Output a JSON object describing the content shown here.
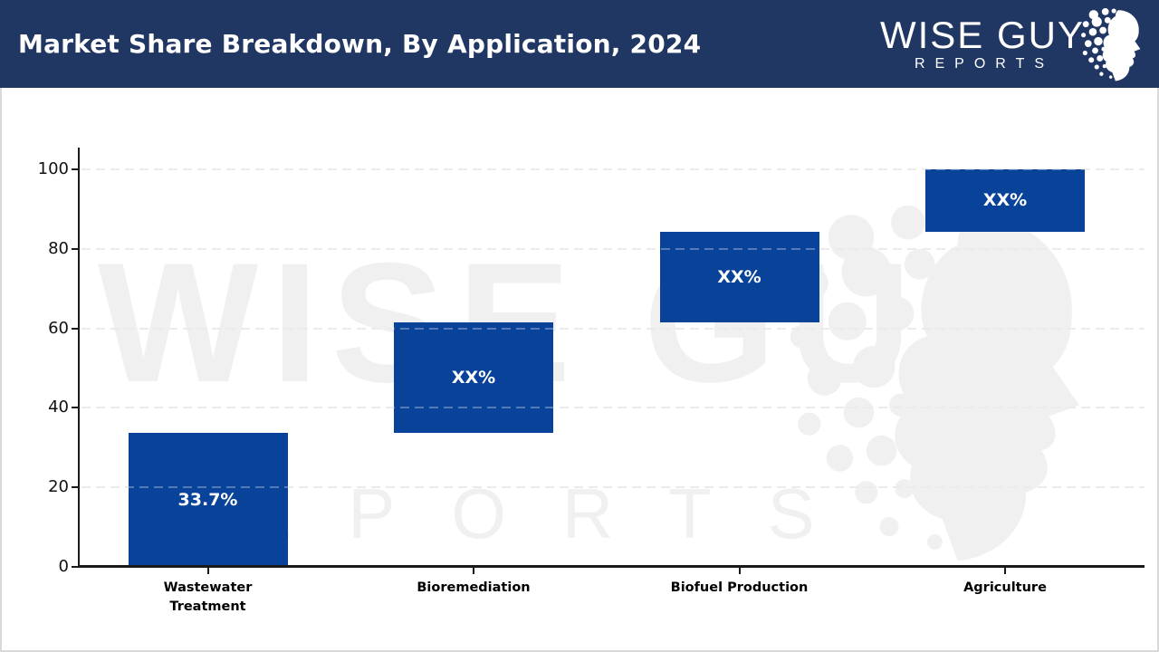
{
  "header": {
    "title": "Market Share Breakdown, By Application, 2024",
    "logo": {
      "name": "WISE GUY",
      "sub": "REPORTS"
    }
  },
  "watermark": {
    "name": "WISE GUY",
    "sub": "REPORTS"
  },
  "colors": {
    "header_bg": "#213763",
    "header_text": "#ffffff",
    "bar": "#084299",
    "bar_label": "#ffffff",
    "axis": "#1a1a1a",
    "gridline": "#e3e3e3",
    "watermark": "#f0f0f1",
    "page_border": "#d9d9d9"
  },
  "chart_data": {
    "type": "bar",
    "subtype": "waterfall",
    "title": "Market Share Breakdown, By Application, 2024",
    "xlabel": "",
    "ylabel": "",
    "categories": [
      "Wastewater\nTreatment",
      "Bioremediation",
      "Biofuel Production",
      "Agriculture"
    ],
    "series": [
      {
        "name": "Market Share (%)",
        "segments": [
          {
            "category": "Wastewater Treatment",
            "start": 0,
            "end": 33.7,
            "label": "33.7%"
          },
          {
            "category": "Bioremediation",
            "start": 33.7,
            "end": 61.5,
            "label": "XX%"
          },
          {
            "category": "Biofuel Production",
            "start": 61.5,
            "end": 84.3,
            "label": "XX%"
          },
          {
            "category": "Agriculture",
            "start": 84.3,
            "end": 100,
            "label": "XX%"
          }
        ]
      }
    ],
    "yticks": [
      0,
      20,
      40,
      60,
      80,
      100
    ],
    "ylim": [
      0,
      105
    ],
    "grid": "horizontal-dashed",
    "legend": "none",
    "bar_color": "#084299"
  }
}
